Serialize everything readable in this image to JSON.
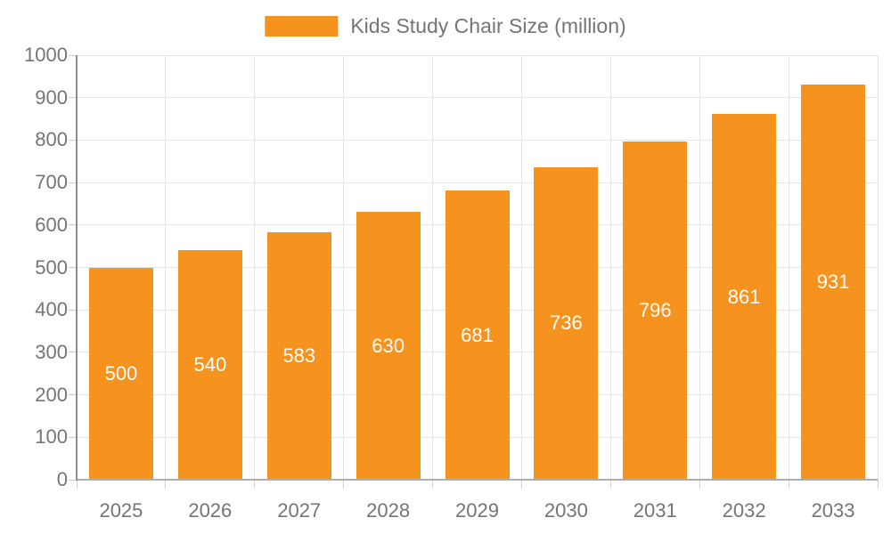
{
  "legend": {
    "label": "Kids Study Chair Size (million)"
  },
  "colors": {
    "bar": "#F6921E",
    "grid": "#e4e4e4",
    "axis_y": "#8f8f8f",
    "axis_x": "#adadad",
    "tick": "#cfcfcf",
    "text": "#757575",
    "value_label": "#ffffff",
    "background": "#ffffff"
  },
  "chart_data": {
    "type": "bar",
    "title": "Kids Study Chair Size (million)",
    "categories": [
      "2025",
      "2026",
      "2027",
      "2028",
      "2029",
      "2030",
      "2031",
      "2032",
      "2033"
    ],
    "values": [
      500,
      540,
      583,
      630,
      681,
      736,
      796,
      861,
      931
    ],
    "xlabel": "",
    "ylabel": "",
    "ylim": [
      0,
      1000
    ],
    "ytick_step": 100,
    "ytick_labels": [
      "0",
      "100",
      "200",
      "300",
      "400",
      "500",
      "600",
      "700",
      "800",
      "900",
      "1000"
    ],
    "grid": true,
    "legend_position": "top",
    "value_label_position": "inside-center"
  }
}
